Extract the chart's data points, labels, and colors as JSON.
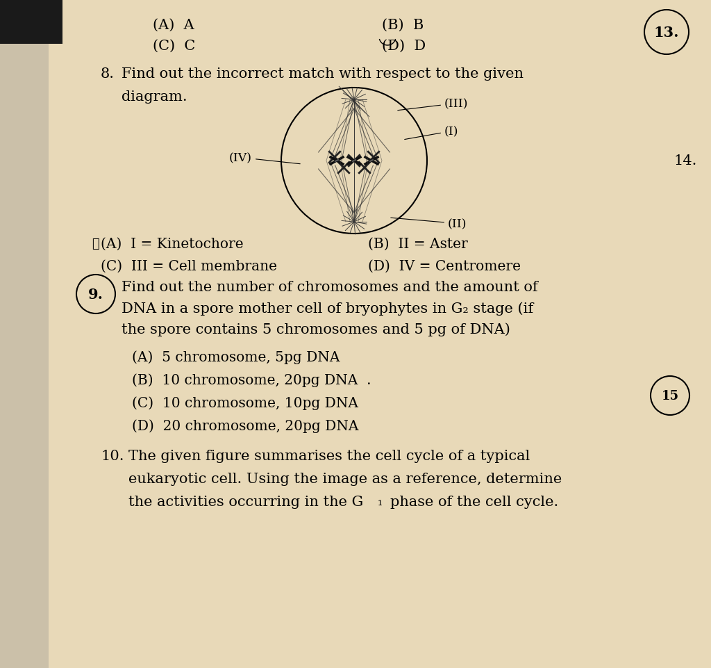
{
  "bg_color": "#d9c9a8",
  "text_color": "#000000",
  "page_bg": "#e8d9b8",
  "top_options": {
    "left": [
      "(A)  A",
      "(C)  C"
    ],
    "right": [
      "(B)  B",
      "(D)  D"
    ]
  },
  "q13_circle": "(13.)",
  "q8_text": "8.  Find out the incorrect match with respect to the given\n     diagram.",
  "diagram_labels": [
    "(III)",
    "(I)",
    "(II)",
    "(IV)"
  ],
  "q8_options": [
    [
      "(A)  I = Kinetochore",
      "(B)  II = Aster"
    ],
    [
      "(C)  III = Cell membrane",
      "(D)  IV = Centromere"
    ]
  ],
  "q9_circle": "9.",
  "q9_text": "Find out the number of chromosomes and the amount of\nDNA in a spore mother cell of bryophytes in G₂ stage (if\nthe spore contains 5 chromosomes and 5 pg of DNA)",
  "q9_options": [
    "(A)  5 chromosome, 5pg DNA",
    "(B)  10 chromosome, 20pg DNA  .",
    "(C)  10 chromosome, 10pg DNA",
    "(D)  20 chromosome, 20pg DNA"
  ],
  "q14_text": "14.",
  "q15_circle": "15",
  "q10_text": "10.  The given figure summarises the cell cycle of a typical\n       eukaryotic cell. Using the image as a reference, determine\n       the activities occurring in the G₁ phase of the cell cycle.",
  "font_size_body": 15,
  "font_size_options": 14.5,
  "font_size_q_num": 15
}
